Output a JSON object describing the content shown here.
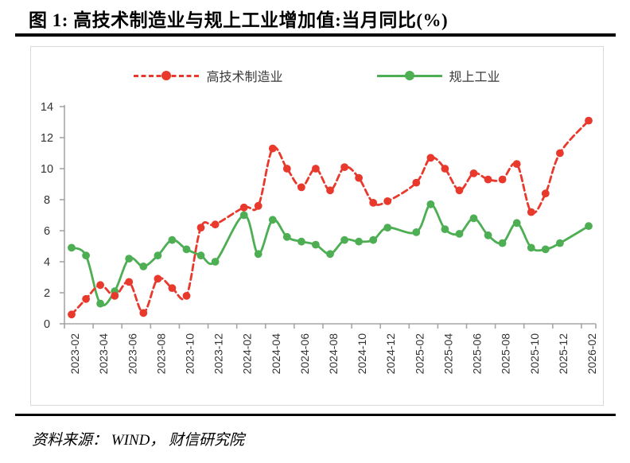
{
  "page": {
    "title": "图 1:  高技术制造业与规上工业增加值:当月同比(%)",
    "source_note": "资料来源： WIND， 财信研究院"
  },
  "chart_data": {
    "type": "line",
    "title": "高技术制造业与规上工业增加值:当月同比(%)",
    "grid": false,
    "legend_position": "top-center",
    "ylim": [
      0,
      14
    ],
    "ytick_step": 2,
    "ytick_labels": [
      "0",
      "2",
      "4",
      "6",
      "8",
      "10",
      "12",
      "14"
    ],
    "x_tick_labels": [
      "2023-02",
      "2023-04",
      "2023-06",
      "2023-08",
      "2023-10",
      "2023-12",
      "2024-02",
      "2024-04",
      "2024-06",
      "2024-08",
      "2024-10",
      "2024-12",
      "2025-02",
      "2025-04",
      "2025-06",
      "2025-08",
      "2025-10",
      "2025-12",
      "2026-02"
    ],
    "categories": [
      "2023-02",
      "2023-03",
      "2023-04",
      "2023-05",
      "2023-06",
      "2023-07",
      "2023-08",
      "2023-09",
      "2023-10",
      "2023-11",
      "2023-12",
      "2024-01",
      "2024-02",
      "2024-03",
      "2024-04",
      "2024-05",
      "2024-06",
      "2024-07",
      "2024-08",
      "2024-09",
      "2024-10",
      "2024-11",
      "2024-12",
      "2025-01",
      "2025-02",
      "2025-03",
      "2025-04",
      "2025-05",
      "2025-06",
      "2025-07",
      "2025-08",
      "2025-09",
      "2025-10",
      "2025-11",
      "2025-12",
      "2026-01",
      "2026-02"
    ],
    "series": [
      {
        "name": "高技术制造业",
        "color": "#E8392C",
        "line_style": "dashed",
        "marker": "circle",
        "values": [
          0.6,
          1.6,
          2.5,
          1.8,
          2.7,
          0.7,
          2.9,
          2.3,
          1.8,
          6.2,
          6.4,
          null,
          7.5,
          7.6,
          11.3,
          10.0,
          8.8,
          10.0,
          8.6,
          10.1,
          9.4,
          7.8,
          7.9,
          null,
          9.1,
          10.7,
          10.0,
          8.6,
          9.7,
          9.3,
          9.3,
          10.3,
          7.2,
          8.4,
          11.0,
          null,
          13.1
        ]
      },
      {
        "name": "规上工业",
        "color": "#4DAE53",
        "line_style": "solid",
        "marker": "circle",
        "values": [
          4.9,
          4.4,
          1.3,
          2.1,
          4.2,
          3.7,
          4.4,
          5.4,
          4.8,
          4.4,
          4.0,
          null,
          7.0,
          4.5,
          6.7,
          5.6,
          5.3,
          5.1,
          4.5,
          5.4,
          5.3,
          5.4,
          6.2,
          null,
          5.9,
          7.7,
          6.1,
          5.8,
          6.8,
          5.7,
          5.2,
          6.5,
          4.9,
          4.8,
          5.2,
          null,
          6.3
        ]
      }
    ],
    "axis_color": "#A6A6A6",
    "tick_label_color": "#333333"
  }
}
